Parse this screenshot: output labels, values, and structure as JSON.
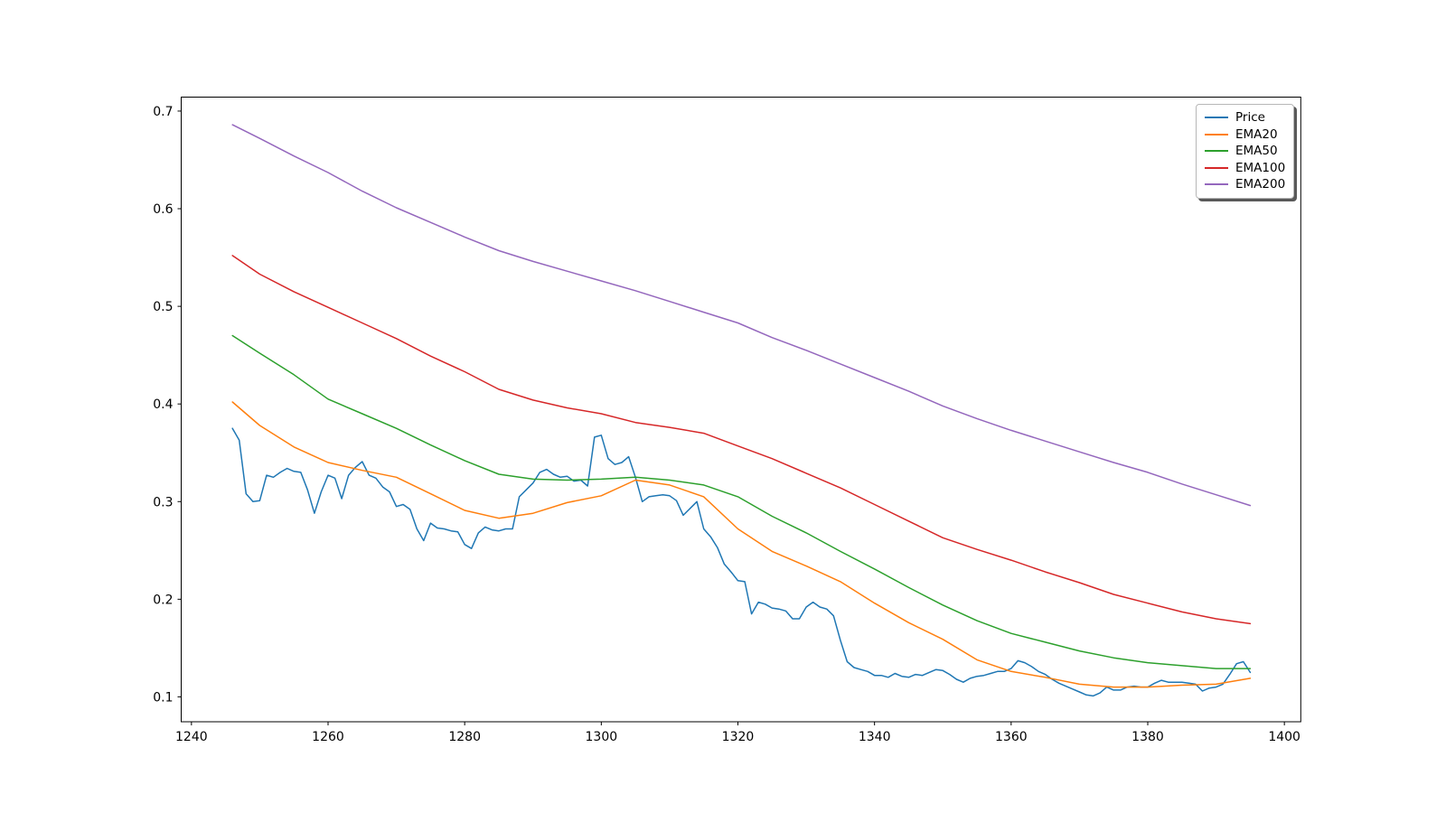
{
  "chart_data": {
    "type": "line",
    "title": "",
    "xlabel": "",
    "ylabel": "",
    "grid": false,
    "background": "#ffffff",
    "xlim": [
      1238.5,
      1402.4
    ],
    "ylim": [
      0.0745,
      0.7143
    ],
    "x_ticks": [
      "1240",
      "1260",
      "1280",
      "1300",
      "1320",
      "1340",
      "1360",
      "1380",
      "1400"
    ],
    "y_ticks": [
      "0.1",
      "0.2",
      "0.3",
      "0.4",
      "0.5",
      "0.6",
      "0.7"
    ],
    "legend": {
      "position": "upper right",
      "shadow": true
    },
    "series": [
      {
        "name": "Price",
        "color": "#1f77b4",
        "x": [
          1246,
          1247,
          1248,
          1249,
          1250,
          1251,
          1252,
          1253,
          1254,
          1255,
          1256,
          1257,
          1258,
          1259,
          1260,
          1261,
          1262,
          1263,
          1264,
          1265,
          1266,
          1267,
          1268,
          1269,
          1270,
          1271,
          1272,
          1273,
          1274,
          1275,
          1276,
          1277,
          1278,
          1279,
          1280,
          1281,
          1282,
          1283,
          1284,
          1285,
          1286,
          1287,
          1288,
          1289,
          1290,
          1291,
          1292,
          1293,
          1294,
          1295,
          1296,
          1297,
          1298,
          1299,
          1300,
          1301,
          1302,
          1303,
          1304,
          1305,
          1306,
          1307,
          1308,
          1309,
          1310,
          1311,
          1312,
          1313,
          1314,
          1315,
          1316,
          1317,
          1318,
          1319,
          1320,
          1321,
          1322,
          1323,
          1324,
          1325,
          1326,
          1327,
          1328,
          1329,
          1330,
          1331,
          1332,
          1333,
          1334,
          1335,
          1336,
          1337,
          1338,
          1339,
          1340,
          1341,
          1342,
          1343,
          1344,
          1345,
          1346,
          1347,
          1348,
          1349,
          1350,
          1351,
          1352,
          1353,
          1354,
          1355,
          1356,
          1357,
          1358,
          1359,
          1360,
          1361,
          1362,
          1363,
          1364,
          1365,
          1366,
          1367,
          1368,
          1369,
          1370,
          1371,
          1372,
          1373,
          1374,
          1375,
          1376,
          1377,
          1378,
          1379,
          1380,
          1381,
          1382,
          1383,
          1384,
          1385,
          1386,
          1387,
          1388,
          1389,
          1390,
          1391,
          1392,
          1393,
          1394,
          1395
        ],
        "y": [
          0.375,
          0.363,
          0.308,
          0.3,
          0.301,
          0.327,
          0.325,
          0.33,
          0.334,
          0.331,
          0.33,
          0.312,
          0.288,
          0.31,
          0.327,
          0.324,
          0.303,
          0.327,
          0.335,
          0.341,
          0.327,
          0.324,
          0.315,
          0.31,
          0.295,
          0.297,
          0.292,
          0.272,
          0.26,
          0.278,
          0.273,
          0.272,
          0.27,
          0.269,
          0.256,
          0.252,
          0.268,
          0.274,
          0.271,
          0.27,
          0.272,
          0.272,
          0.305,
          0.312,
          0.319,
          0.33,
          0.333,
          0.328,
          0.325,
          0.326,
          0.321,
          0.322,
          0.316,
          0.366,
          0.368,
          0.344,
          0.338,
          0.34,
          0.346,
          0.325,
          0.3,
          0.305,
          0.306,
          0.307,
          0.306,
          0.301,
          0.286,
          0.293,
          0.3,
          0.272,
          0.264,
          0.253,
          0.236,
          0.228,
          0.219,
          0.218,
          0.185,
          0.197,
          0.195,
          0.191,
          0.19,
          0.188,
          0.18,
          0.18,
          0.192,
          0.197,
          0.192,
          0.19,
          0.183,
          0.158,
          0.136,
          0.13,
          0.128,
          0.126,
          0.122,
          0.122,
          0.12,
          0.124,
          0.121,
          0.12,
          0.123,
          0.122,
          0.125,
          0.128,
          0.127,
          0.123,
          0.118,
          0.115,
          0.119,
          0.121,
          0.122,
          0.124,
          0.126,
          0.126,
          0.129,
          0.137,
          0.135,
          0.131,
          0.126,
          0.123,
          0.118,
          0.114,
          0.111,
          0.108,
          0.105,
          0.102,
          0.101,
          0.104,
          0.11,
          0.107,
          0.107,
          0.11,
          0.111,
          0.11,
          0.11,
          0.114,
          0.117,
          0.115,
          0.115,
          0.115,
          0.114,
          0.113,
          0.106,
          0.109,
          0.11,
          0.113,
          0.123,
          0.134,
          0.136,
          0.125
        ]
      },
      {
        "name": "EMA20",
        "color": "#ff7f0e",
        "x": [
          1246,
          1250,
          1255,
          1260,
          1265,
          1270,
          1275,
          1280,
          1285,
          1290,
          1295,
          1300,
          1305,
          1310,
          1315,
          1320,
          1325,
          1330,
          1335,
          1340,
          1345,
          1350,
          1355,
          1360,
          1365,
          1370,
          1375,
          1380,
          1385,
          1390,
          1395
        ],
        "y": [
          0.402,
          0.378,
          0.356,
          0.34,
          0.332,
          0.325,
          0.308,
          0.291,
          0.283,
          0.288,
          0.299,
          0.306,
          0.322,
          0.317,
          0.305,
          0.272,
          0.249,
          0.234,
          0.218,
          0.196,
          0.176,
          0.159,
          0.138,
          0.126,
          0.12,
          0.113,
          0.11,
          0.11,
          0.112,
          0.113,
          0.119
        ]
      },
      {
        "name": "EMA50",
        "color": "#2ca02c",
        "x": [
          1246,
          1250,
          1255,
          1260,
          1265,
          1270,
          1275,
          1280,
          1285,
          1290,
          1295,
          1300,
          1305,
          1310,
          1315,
          1320,
          1325,
          1330,
          1335,
          1340,
          1345,
          1350,
          1355,
          1360,
          1365,
          1370,
          1375,
          1380,
          1385,
          1390,
          1395
        ],
        "y": [
          0.47,
          0.452,
          0.43,
          0.405,
          0.39,
          0.375,
          0.358,
          0.342,
          0.328,
          0.323,
          0.322,
          0.323,
          0.325,
          0.322,
          0.317,
          0.305,
          0.285,
          0.268,
          0.249,
          0.231,
          0.212,
          0.194,
          0.178,
          0.165,
          0.156,
          0.147,
          0.14,
          0.135,
          0.132,
          0.129,
          0.129
        ]
      },
      {
        "name": "EMA100",
        "color": "#d62728",
        "x": [
          1246,
          1250,
          1255,
          1260,
          1265,
          1270,
          1275,
          1280,
          1285,
          1290,
          1295,
          1300,
          1305,
          1310,
          1315,
          1320,
          1325,
          1330,
          1335,
          1340,
          1345,
          1350,
          1355,
          1360,
          1365,
          1370,
          1375,
          1380,
          1385,
          1390,
          1395
        ],
        "y": [
          0.552,
          0.533,
          0.515,
          0.499,
          0.483,
          0.467,
          0.449,
          0.433,
          0.415,
          0.404,
          0.396,
          0.39,
          0.381,
          0.376,
          0.37,
          0.357,
          0.344,
          0.329,
          0.314,
          0.297,
          0.28,
          0.263,
          0.251,
          0.24,
          0.228,
          0.217,
          0.205,
          0.196,
          0.187,
          0.18,
          0.175
        ]
      },
      {
        "name": "EMA200",
        "color": "#9467bd",
        "x": [
          1246,
          1250,
          1255,
          1260,
          1265,
          1270,
          1275,
          1280,
          1285,
          1290,
          1295,
          1300,
          1305,
          1310,
          1315,
          1320,
          1325,
          1330,
          1335,
          1340,
          1345,
          1350,
          1355,
          1360,
          1365,
          1370,
          1375,
          1380,
          1385,
          1390,
          1395
        ],
        "y": [
          0.686,
          0.672,
          0.654,
          0.637,
          0.618,
          0.601,
          0.586,
          0.571,
          0.557,
          0.546,
          0.536,
          0.526,
          0.516,
          0.505,
          0.494,
          0.483,
          0.468,
          0.455,
          0.441,
          0.427,
          0.413,
          0.398,
          0.385,
          0.373,
          0.362,
          0.351,
          0.34,
          0.33,
          0.318,
          0.307,
          0.296
        ]
      }
    ]
  }
}
